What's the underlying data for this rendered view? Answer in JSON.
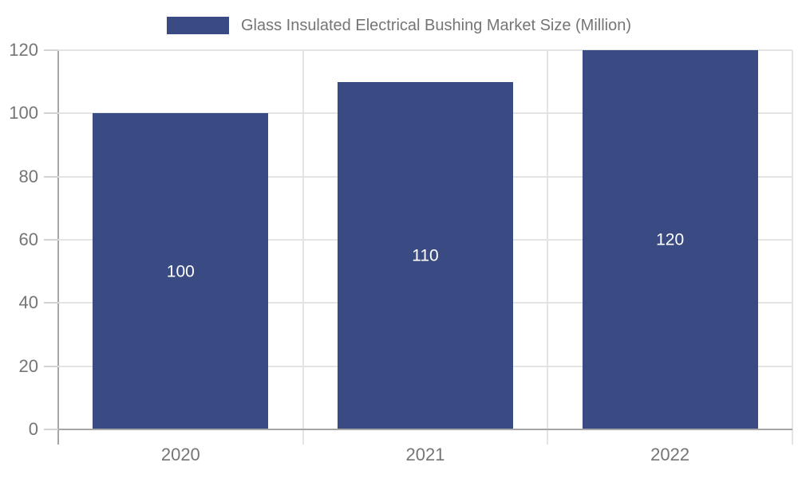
{
  "legend": {
    "label": "Glass Insulated Electrical Bushing Market Size (Million)"
  },
  "chart_data": {
    "type": "bar",
    "title": "Glass Insulated Electrical Bushing Market Size (Million)",
    "series_name": "Glass Insulated Electrical Bushing Market Size (Million)",
    "categories": [
      "2020",
      "2021",
      "2022"
    ],
    "values": [
      100,
      110,
      120
    ],
    "data_labels": [
      "100",
      "110",
      "120"
    ],
    "xlabel": "",
    "ylabel": "",
    "ylim": [
      0,
      120
    ],
    "yticks": [
      0,
      20,
      40,
      60,
      80,
      100,
      120
    ],
    "grid": true,
    "legend_position": "top-center",
    "colors": {
      "bar": "#3a4b84",
      "bar_label_text": "#ffffff",
      "axis_text": "#757575",
      "legend_text": "#757575",
      "gridline": "#e4e4e4",
      "axis_line": "#a6a6a6",
      "background": "#ffffff"
    }
  }
}
